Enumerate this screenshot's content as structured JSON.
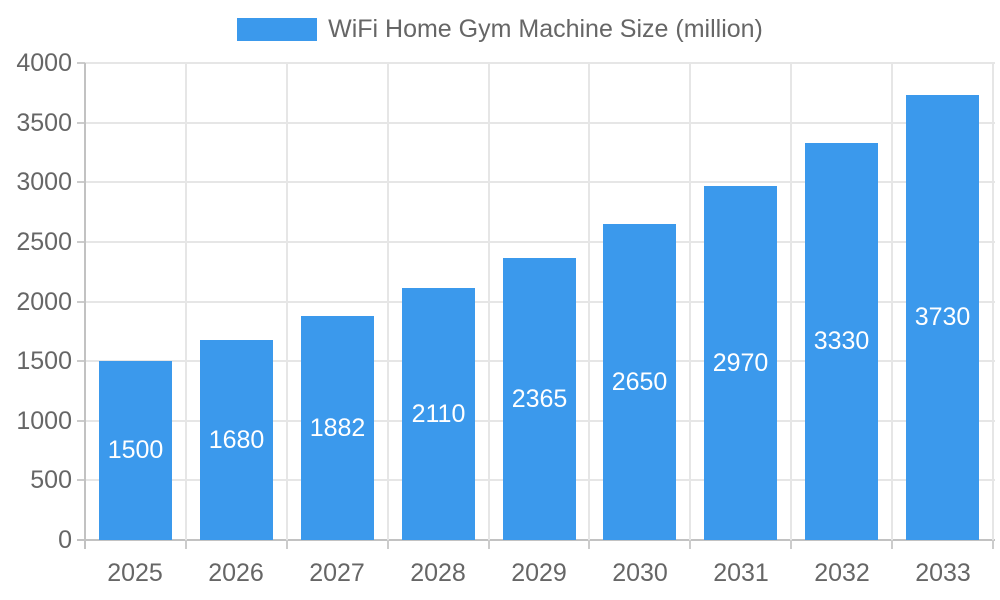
{
  "chart_data": {
    "type": "bar",
    "categories": [
      "2025",
      "2026",
      "2027",
      "2028",
      "2029",
      "2030",
      "2031",
      "2032",
      "2033"
    ],
    "series": [
      {
        "name": "WiFi Home Gym Machine Size (million)",
        "values": [
          1500,
          1680,
          1882,
          2110,
          2365,
          2650,
          2970,
          3330,
          3730
        ]
      }
    ],
    "title": "",
    "xlabel": "",
    "ylabel": "",
    "ylim": [
      0,
      4000
    ],
    "ytick_step": 500,
    "ytick_labels": [
      "0",
      "500",
      "1000",
      "1500",
      "2000",
      "2500",
      "3000",
      "3500",
      "4000"
    ],
    "grid": true,
    "legend_position": "top",
    "value_labels_inside_bars": true,
    "colors": {
      "bar": "#3B99EC",
      "bar_value_text": "#FFFFFF",
      "axis_text": "#666666",
      "gridline": "#E6E6E6",
      "axis_line": "#C2C2C2",
      "tick": "#CCCCCC",
      "background": "#FFFFFF"
    }
  }
}
